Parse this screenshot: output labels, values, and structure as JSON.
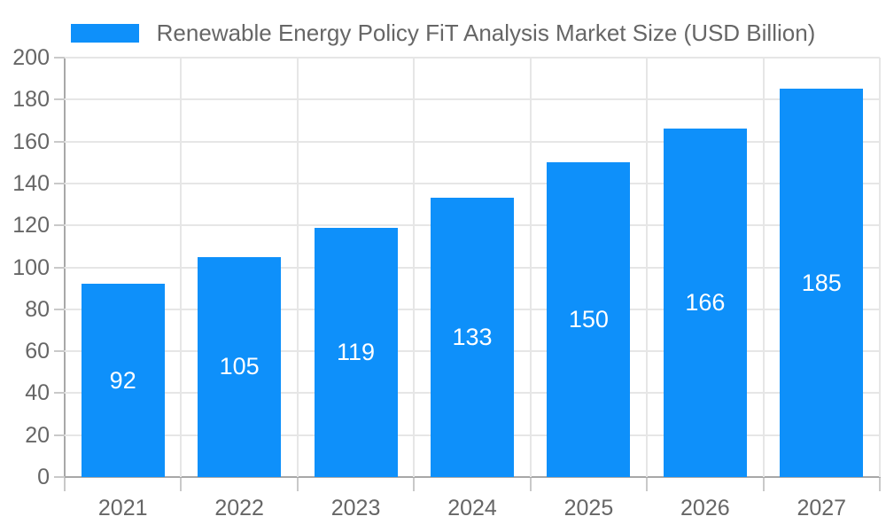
{
  "chart_data": {
    "type": "bar",
    "title": "Renewable Energy Policy FiT Analysis Market Size (USD Billion)",
    "categories": [
      "2021",
      "2022",
      "2023",
      "2024",
      "2025",
      "2026",
      "2027"
    ],
    "values": [
      92,
      105,
      119,
      133,
      150,
      166,
      185
    ],
    "xlabel": "",
    "ylabel": "",
    "ylim": [
      0,
      200
    ],
    "ytick_step": 20,
    "ytick_labels": [
      "0",
      "20",
      "40",
      "60",
      "80",
      "100",
      "120",
      "140",
      "160",
      "180",
      "200"
    ],
    "grid": "on",
    "legend_position": "top-center",
    "colors": {
      "bar": "#0e90fa",
      "value_label": "#ffffff",
      "axis_text": "#666666",
      "grid_line": "#e6e6e6",
      "axis_line": "#a8a8a8",
      "tick_mark": "#c9c9c9"
    }
  }
}
